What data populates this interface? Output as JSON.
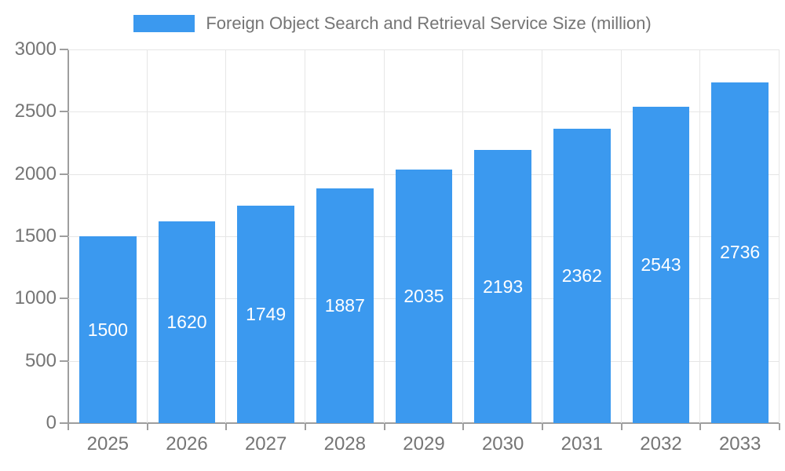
{
  "chart_data": {
    "type": "bar",
    "series_name": "Foreign Object Search and Retrieval Service Size (million)",
    "categories": [
      "2025",
      "2026",
      "2027",
      "2028",
      "2029",
      "2030",
      "2031",
      "2032",
      "2033"
    ],
    "values": [
      1500,
      1620,
      1749,
      1887,
      2035,
      2193,
      2362,
      2543,
      2736
    ],
    "title": "",
    "xlabel": "",
    "ylabel": "",
    "ylim": [
      0,
      3000
    ],
    "yticks": [
      0,
      500,
      1000,
      1500,
      2000,
      2500,
      3000
    ],
    "grid": true,
    "legend_position": "top-center",
    "bar_label_position": "inside-center",
    "bar_width_fraction": 0.725,
    "colors": {
      "bar": "#3B99EF",
      "grid": "#e6e6e6",
      "axis": "#9e9e9e",
      "tick_text": "#757575",
      "bar_label_text": "#ffffff"
    }
  }
}
